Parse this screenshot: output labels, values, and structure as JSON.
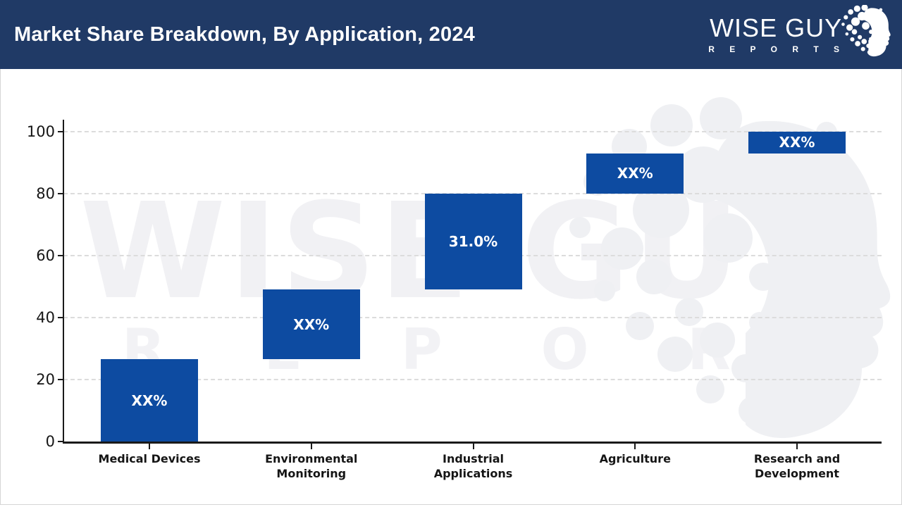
{
  "header": {
    "title": "Market Share Breakdown, By Application, 2024",
    "background": "#203a66",
    "logo": {
      "name": "WISE GUY",
      "subname": "R E P O R T S"
    }
  },
  "watermark": {
    "line1": "WISE GUY",
    "line2": "R E P O R T S"
  },
  "chart_data": {
    "type": "bar",
    "variant": "floating-waterfall",
    "title": "Market Share Breakdown, By Application, 2024",
    "categories": [
      "Medical Devices",
      "Environmental Monitoring",
      "Industrial Applications",
      "Agriculture",
      "Research and Development"
    ],
    "category_lines": [
      [
        "Medical Devices"
      ],
      [
        "Environmental",
        "Monitoring"
      ],
      [
        "Industrial",
        "Applications"
      ],
      [
        "Agriculture"
      ],
      [
        "Research and",
        "Development"
      ]
    ],
    "segments": [
      {
        "category": "Medical Devices",
        "start": 0,
        "end": 26.5,
        "label": "XX%"
      },
      {
        "category": "Environmental Monitoring",
        "start": 26.5,
        "end": 49,
        "label": "XX%"
      },
      {
        "category": "Industrial Applications",
        "start": 49,
        "end": 80,
        "label": "31.0%"
      },
      {
        "category": "Agriculture",
        "start": 80,
        "end": 93,
        "label": "XX%"
      },
      {
        "category": "Research and Development",
        "start": 93,
        "end": 100,
        "label": "XX%"
      }
    ],
    "yticks": [
      0,
      20,
      40,
      60,
      80,
      100
    ],
    "ylim": [
      0,
      104
    ],
    "xlabel": "",
    "ylabel": "",
    "bar_color": "#0d4ba1",
    "bar_label_color": "#ffffff",
    "grid": {
      "horizontal": true,
      "style": "dashed",
      "color": "#dcdcdc",
      "vertical": false
    },
    "legend": null
  }
}
